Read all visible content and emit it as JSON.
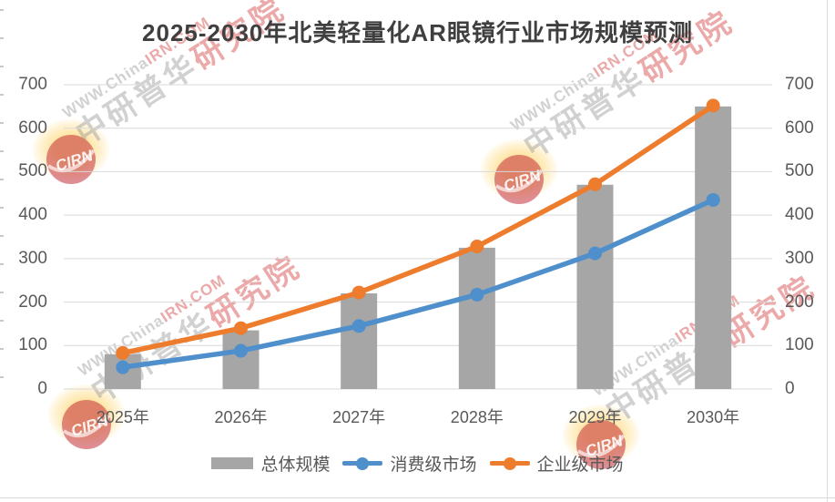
{
  "title": "2025-2030年北美轻量化AR眼镜行业市场规模预测",
  "chart_data": {
    "type": "combo",
    "subtype": "bar+line",
    "categories": [
      "2025年",
      "2026年",
      "2027年",
      "2028年",
      "2029年",
      "2030年"
    ],
    "series": [
      {
        "name": "总体规模",
        "type": "bar",
        "color": "#a6a6a6",
        "values": [
          80,
          135,
          220,
          325,
          470,
          650
        ]
      },
      {
        "name": "消费级市场",
        "type": "line",
        "color": "#4e8fcc",
        "values": [
          50,
          88,
          145,
          217,
          312,
          435
        ]
      },
      {
        "name": "企业级市场",
        "type": "line",
        "color": "#ee7c2d",
        "values": [
          83,
          140,
          222,
          328,
          471,
          652
        ]
      }
    ],
    "ylim": [
      0,
      700
    ],
    "yticks": [
      0,
      100,
      200,
      300,
      400,
      500,
      600,
      700
    ],
    "dual_axis": true,
    "grid": true,
    "legend_position": "bottom",
    "gridline_color": "#d9d9d9",
    "axis_label_color": "#595959",
    "title_color": "#3f3f3f"
  },
  "watermark": {
    "url_prefix": "WWW.China",
    "url_accent": "IRN",
    "url_suffix": ".COM",
    "brand_gray": "中研普华",
    "brand_accent": "研究院",
    "badge_text": "CIRN"
  }
}
